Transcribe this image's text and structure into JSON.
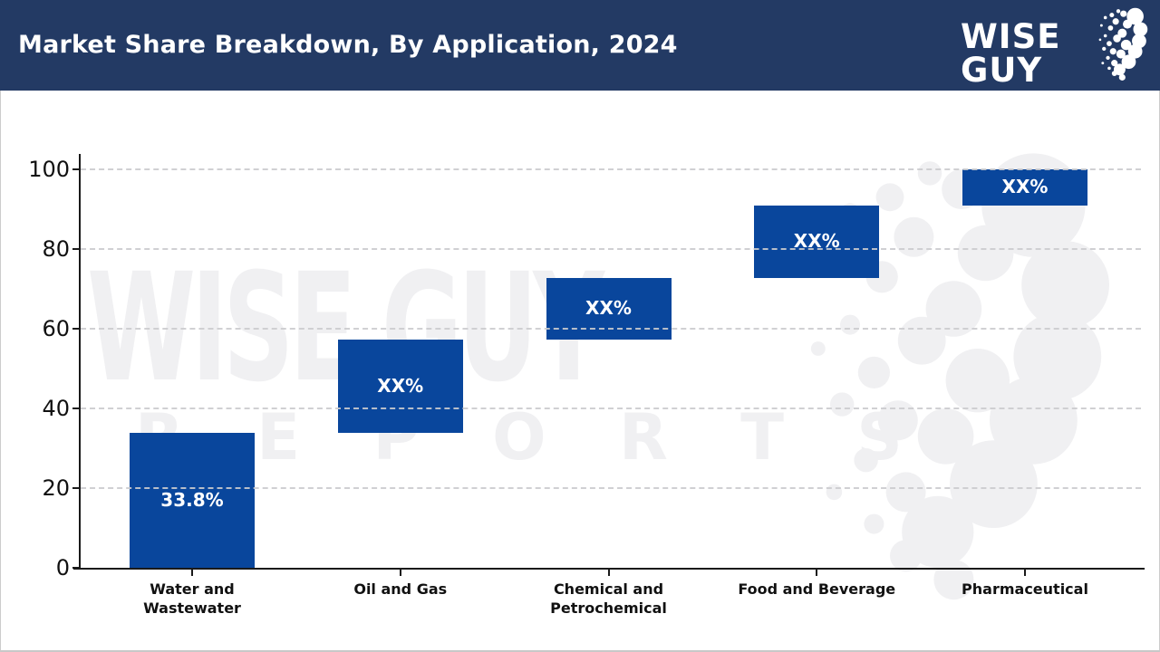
{
  "header": {
    "title": "Market Share Breakdown, By Application, 2024",
    "logo": {
      "line1": "WISE GUY",
      "line2": "R E P O R T S"
    }
  },
  "watermark": {
    "line1": "WISE GUY",
    "line2": "R E P O R T S"
  },
  "icons": {
    "logo_face": "dotted-head-profile",
    "watermark_face": "dotted-head-profile"
  },
  "colors": {
    "header_bg": "#233a64",
    "bar": "#09469c",
    "bar_label_text": "#ffffff",
    "watermark": "#f0f0f2",
    "gridline": "#cbcbce",
    "axis": "#1a1a1a"
  },
  "chart_data": {
    "type": "bar",
    "subtype": "waterfall",
    "title": "Market Share Breakdown, By Application, 2024",
    "categories": [
      "Water and Wastewater",
      "Oil and Gas",
      "Chemical and Petrochemical",
      "Food and Beverage",
      "Pharmaceutical"
    ],
    "segments": [
      {
        "category": "Water and Wastewater",
        "start": 0,
        "end": 33.8,
        "label": "33.8%"
      },
      {
        "category": "Oil and Gas",
        "start": 33.8,
        "end": 57.2,
        "label": "XX%"
      },
      {
        "category": "Chemical and Petrochemical",
        "start": 57.2,
        "end": 72.8,
        "label": "XX%"
      },
      {
        "category": "Food and Beverage",
        "start": 72.8,
        "end": 90.9,
        "label": "XX%"
      },
      {
        "category": "Pharmaceutical",
        "start": 90.9,
        "end": 100,
        "label": "XX%"
      }
    ],
    "xlabel": "",
    "ylabel": "",
    "ylim": [
      0,
      100
    ],
    "yticks": [
      0,
      20,
      40,
      60,
      80,
      100
    ],
    "grid": "horizontal-dashed",
    "legend": null
  }
}
